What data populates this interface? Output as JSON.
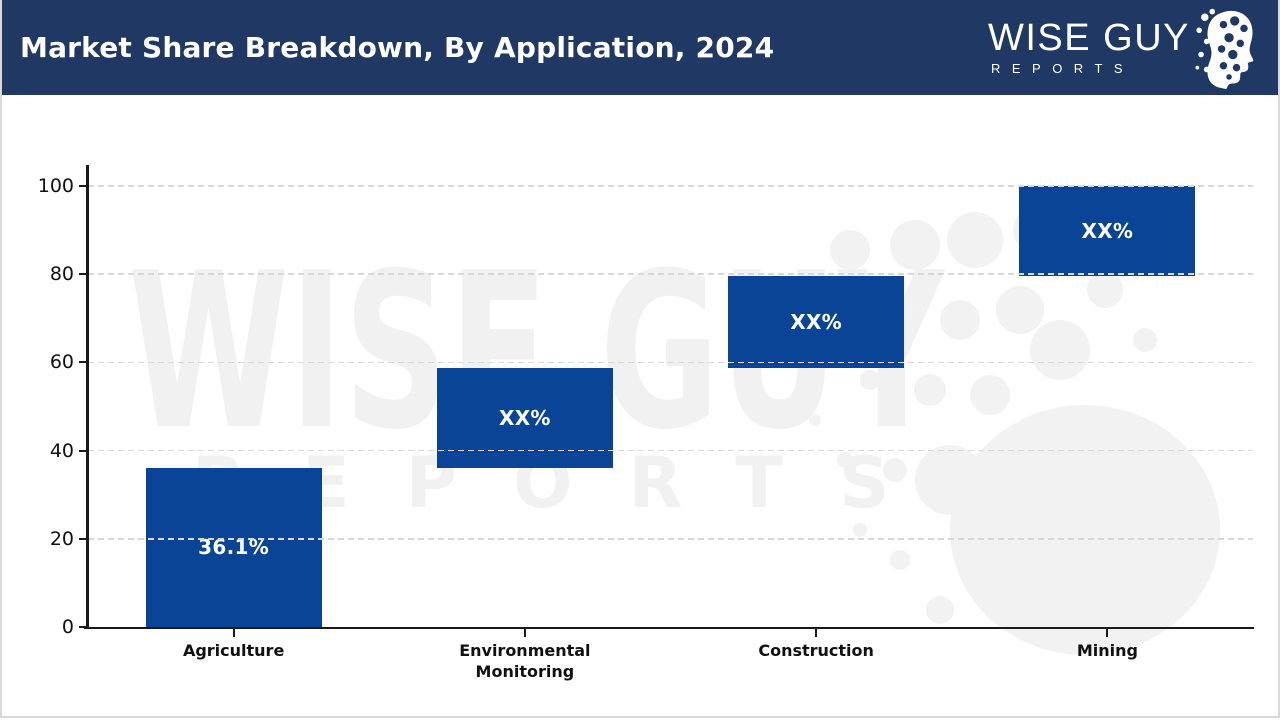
{
  "header": {
    "title": "Market Share Breakdown, By Application, 2024",
    "logo": {
      "line1": "WISE GUY",
      "line2": "REPORTS"
    }
  },
  "watermark": {
    "line1": "WISE GUY",
    "line2": "REPORTS"
  },
  "colors": {
    "header_bg": "#1f3864",
    "bar": "#0a4496",
    "bar_label": "#ffffff",
    "grid": "#d8d8d8",
    "axis": "#1a1a1a",
    "watermark": "#f1f1f1",
    "frame": "#d9d9d9"
  },
  "chart_data": {
    "type": "bar",
    "subtype": "floating-waterfall",
    "title": "Market Share Breakdown, By Application, 2024",
    "xlabel": "",
    "ylabel": "",
    "categories": [
      "Agriculture",
      "Environmental Monitoring",
      "Construction",
      "Mining"
    ],
    "segments": [
      {
        "category": "Agriculture",
        "start": 0,
        "end": 36.1,
        "label": "36.1%"
      },
      {
        "category": "Environmental Monitoring",
        "start": 36.1,
        "end": 58.8,
        "label": "XX%"
      },
      {
        "category": "Construction",
        "start": 58.8,
        "end": 79.5,
        "label": "XX%"
      },
      {
        "category": "Mining",
        "start": 79.5,
        "end": 100,
        "label": "XX%"
      }
    ],
    "values": [
      36.1,
      22.7,
      20.7,
      20.5
    ],
    "ylim": [
      0,
      100
    ],
    "yticks": [
      0,
      20,
      40,
      60,
      80,
      100
    ],
    "grid": true,
    "legend": false
  }
}
